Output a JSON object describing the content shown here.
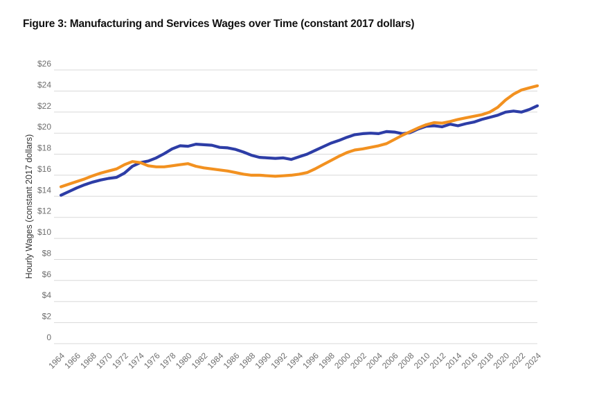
{
  "title": "Figure 3: Manufacturing and Services Wages over Time (constant 2017 dollars)",
  "chart_data": {
    "type": "line",
    "title": "Figure 3: Manufacturing and Services Wages over Time (constant 2017 dollars)",
    "xlabel": "",
    "ylabel": "Hourly Wages (constant 2017 dollars)",
    "ylim": [
      0,
      26
    ],
    "xlim": [
      1964,
      2024
    ],
    "grid": true,
    "legend": "none",
    "ytick_values": [
      26,
      24,
      22,
      20,
      18,
      16,
      14,
      12,
      10,
      8,
      6,
      4,
      2,
      0
    ],
    "ytick_labels": [
      "$26",
      "$24",
      "$22",
      "$20",
      "$18",
      "$16",
      "$14",
      "$12",
      "$10",
      "$8",
      "$6",
      "$4",
      "$2",
      "0"
    ],
    "xtick_values": [
      1964,
      1966,
      1968,
      1970,
      1972,
      1974,
      1976,
      1978,
      1980,
      1982,
      1984,
      1986,
      1988,
      1990,
      1992,
      1994,
      1996,
      1998,
      2000,
      2002,
      2004,
      2006,
      2008,
      2010,
      2012,
      2014,
      2016,
      2018,
      2020,
      2022,
      2024
    ],
    "x": [
      1964,
      1965,
      1966,
      1967,
      1968,
      1969,
      1970,
      1971,
      1972,
      1973,
      1974,
      1975,
      1976,
      1977,
      1978,
      1979,
      1980,
      1981,
      1982,
      1983,
      1984,
      1985,
      1986,
      1987,
      1988,
      1989,
      1990,
      1991,
      1992,
      1993,
      1994,
      1995,
      1996,
      1997,
      1998,
      1999,
      2000,
      2001,
      2002,
      2003,
      2004,
      2005,
      2006,
      2007,
      2008,
      2009,
      2010,
      2011,
      2012,
      2013,
      2014,
      2015,
      2016,
      2017,
      2018,
      2019,
      2020,
      2021,
      2022,
      2023,
      2024
    ],
    "series": [
      {
        "name": "blue-series",
        "color": "#2d3da6",
        "values": [
          14.1,
          14.45,
          14.8,
          15.1,
          15.35,
          15.55,
          15.7,
          15.8,
          16.2,
          16.85,
          17.2,
          17.35,
          17.65,
          18.05,
          18.5,
          18.8,
          18.75,
          18.95,
          18.9,
          18.85,
          18.65,
          18.6,
          18.45,
          18.2,
          17.9,
          17.7,
          17.65,
          17.6,
          17.65,
          17.5,
          17.75,
          18.0,
          18.35,
          18.7,
          19.05,
          19.3,
          19.6,
          19.85,
          19.95,
          20.0,
          19.95,
          20.15,
          20.1,
          19.95,
          20.05,
          20.4,
          20.65,
          20.7,
          20.6,
          20.85,
          20.7,
          20.9,
          21.05,
          21.3,
          21.5,
          21.7,
          22.0,
          22.1,
          22.0,
          22.25,
          22.6
        ]
      },
      {
        "name": "orange-series",
        "color": "#f29120",
        "values": [
          14.9,
          15.15,
          15.4,
          15.65,
          15.95,
          16.2,
          16.4,
          16.6,
          17.0,
          17.3,
          17.2,
          16.9,
          16.8,
          16.8,
          16.9,
          17.0,
          17.1,
          16.85,
          16.7,
          16.6,
          16.5,
          16.4,
          16.25,
          16.1,
          16.0,
          16.0,
          15.95,
          15.9,
          15.95,
          16.0,
          16.1,
          16.25,
          16.6,
          17.0,
          17.4,
          17.8,
          18.15,
          18.4,
          18.5,
          18.65,
          18.8,
          19.0,
          19.4,
          19.8,
          20.15,
          20.5,
          20.8,
          21.0,
          20.95,
          21.1,
          21.3,
          21.45,
          21.6,
          21.75,
          22.0,
          22.45,
          23.15,
          23.7,
          24.1,
          24.3,
          24.5
        ]
      }
    ],
    "colors": {
      "gridline": "#d8d8d8",
      "tick_label": "#6e6e6e",
      "axis_title": "#333333",
      "title": "#111111"
    }
  }
}
